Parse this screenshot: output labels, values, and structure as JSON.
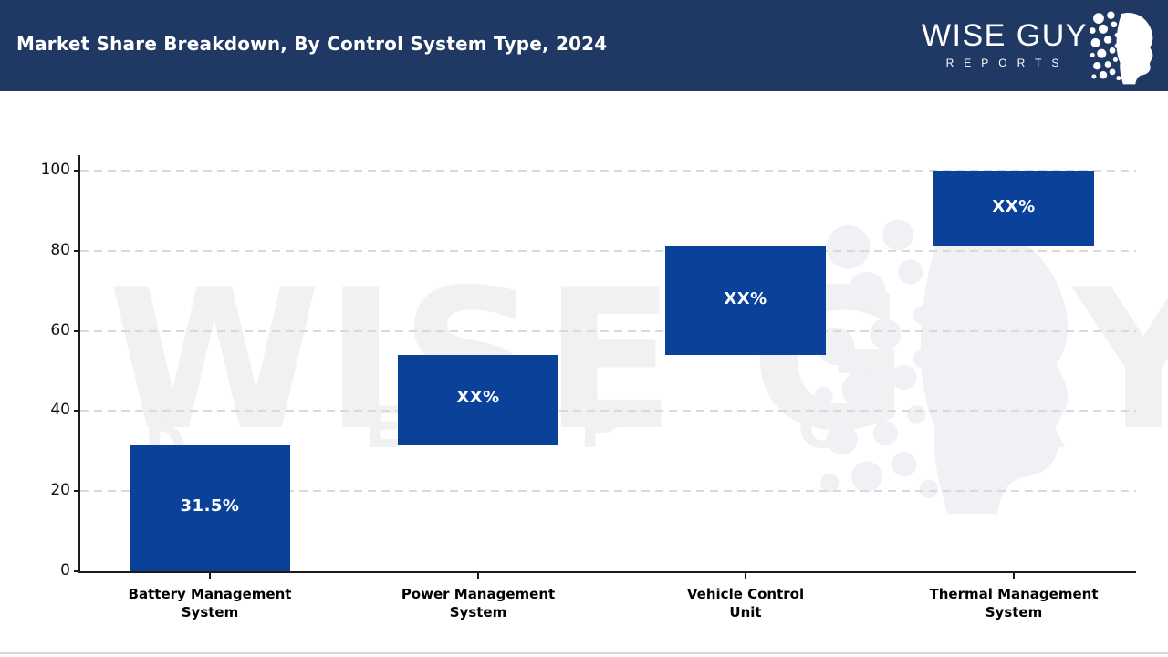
{
  "header": {
    "title": "Market Share Breakdown, By Control System Type, 2024",
    "bg_color": "#1f3864",
    "logo": {
      "name": "WISE GUY",
      "subtitle": "REPORTS",
      "head_icon": "dotted-face-profile"
    }
  },
  "watermark": {
    "line1": "WISE GUY",
    "line2": "R E P O R T S",
    "head_icon": "dotted-face-profile"
  },
  "chart_data": {
    "type": "bar",
    "subtype": "waterfall",
    "title": "Market Share Breakdown, By Control System Type, 2024",
    "categories": [
      "Battery Management System",
      "Power Management System",
      "Vehicle Control Unit",
      "Thermal Management System"
    ],
    "category_lines": [
      [
        "Battery Management",
        "System"
      ],
      [
        "Power Management",
        "System"
      ],
      [
        "Vehicle Control",
        "Unit"
      ],
      [
        "Thermal Management",
        "System"
      ]
    ],
    "series": [
      {
        "name": "Market Share",
        "segments": [
          {
            "label": "31.5%",
            "start": 0,
            "end": 31.5
          },
          {
            "label": "XX%",
            "start": 31.5,
            "end": 54
          },
          {
            "label": "XX%",
            "start": 54,
            "end": 81
          },
          {
            "label": "XX%",
            "start": 81,
            "end": 100
          }
        ]
      }
    ],
    "bar_color": "#0b4299",
    "bar_label_color": "#ffffff",
    "yticks": [
      0,
      20,
      40,
      60,
      80,
      100
    ],
    "ylim": [
      0,
      100
    ],
    "xlabel": "",
    "ylabel": "",
    "grid": "horizontal-dashed",
    "grid_color": "#d9d9d9",
    "legend": "none"
  }
}
